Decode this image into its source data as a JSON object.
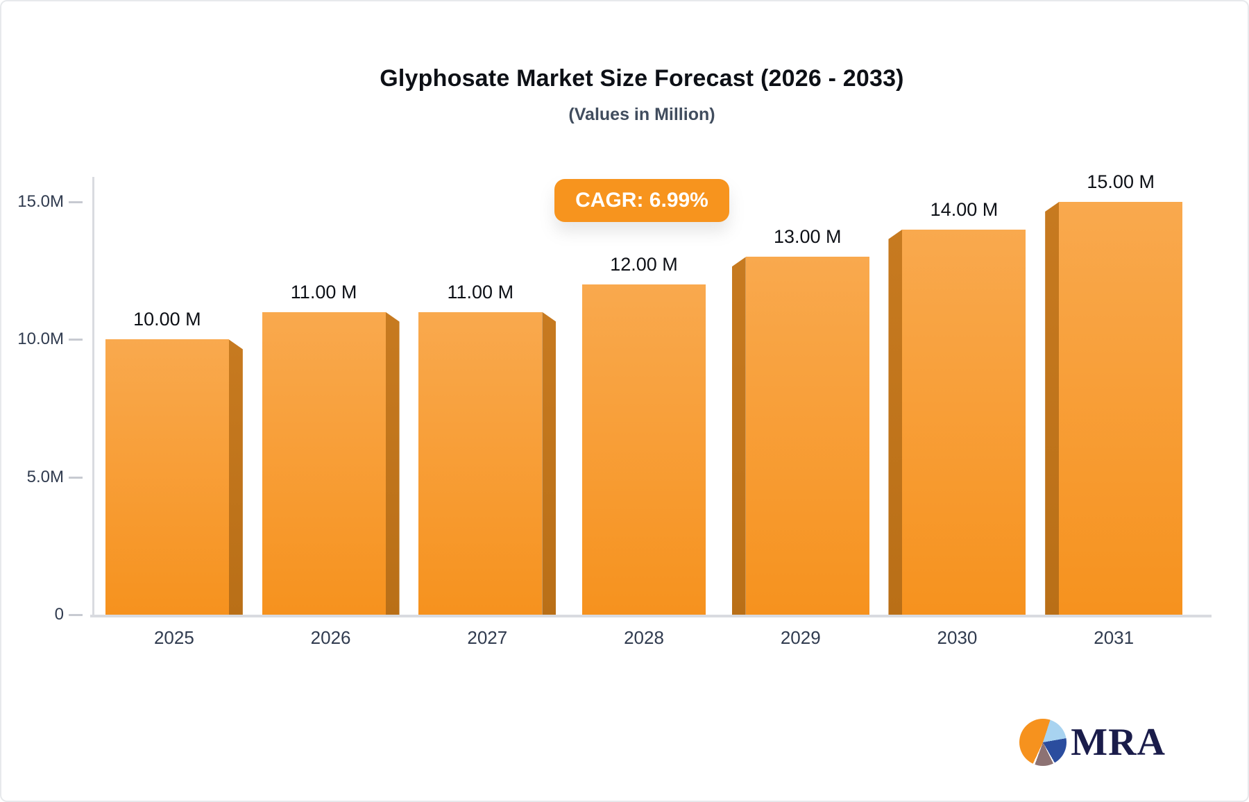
{
  "chart_data": {
    "type": "bar",
    "title": "Glyphosate Market Size Forecast (2026 - 2033)",
    "subtitle": "(Values in Million)",
    "annotation": "CAGR: 6.99%",
    "categories": [
      "2025",
      "2026",
      "2027",
      "2028",
      "2029",
      "2030",
      "2031"
    ],
    "values": [
      10,
      11,
      11,
      12,
      13,
      14,
      15
    ],
    "value_labels": [
      "10.00 M",
      "11.00 M",
      "11.00 M",
      "12.00 M",
      "13.00 M",
      "14.00 M",
      "15.00 M"
    ],
    "y_ticks": [
      {
        "label": "15.0M",
        "value": 15
      },
      {
        "label": "10.0M",
        "value": 10
      },
      {
        "label": "5.0M",
        "value": 5
      },
      {
        "label": "0",
        "value": 0
      }
    ],
    "ylim": [
      0,
      15
    ],
    "xlabel": "",
    "ylabel": "",
    "unit": "Million",
    "grid": false,
    "legend": "none"
  },
  "colors": {
    "accent": "#f7941e",
    "bar-top": "#f9a94e",
    "bar-bottom": "#f6921e",
    "bar-side": "#b96f17",
    "axis": "#d9dbe0",
    "ink": "#0d1016",
    "slate": "#414d5e",
    "tick": "#303b4f",
    "navy": "#1a1c4a",
    "pie-orange": "#f6921e",
    "pie-lightblue": "#a8d3f0",
    "pie-blue": "#2b4d9e",
    "pie-mauve": "#8d7273"
  },
  "logo": {
    "text": "MRA"
  }
}
